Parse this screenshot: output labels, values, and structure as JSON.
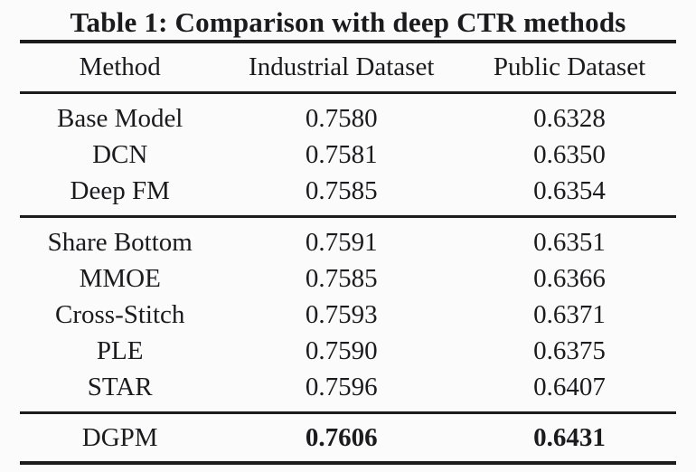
{
  "caption": "Table 1: Comparison with deep CTR methods",
  "columns": {
    "method": "Method",
    "industrial": "Industrial Dataset",
    "public": "Public Dataset"
  },
  "rows": [
    {
      "method": "Base Model",
      "industrial": "0.7580",
      "public": "0.6328"
    },
    {
      "method": "DCN",
      "industrial": "0.7581",
      "public": "0.6350"
    },
    {
      "method": "Deep FM",
      "industrial": "0.7585",
      "public": "0.6354"
    },
    {
      "method": "Share Bottom",
      "industrial": "0.7591",
      "public": "0.6351"
    },
    {
      "method": "MMOE",
      "industrial": "0.7585",
      "public": "0.6366"
    },
    {
      "method": "Cross-Stitch",
      "industrial": "0.7593",
      "public": "0.6371"
    },
    {
      "method": "PLE",
      "industrial": "0.7590",
      "public": "0.6375"
    },
    {
      "method": "STAR",
      "industrial": "0.7596",
      "public": "0.6407"
    },
    {
      "method": "DGPM",
      "industrial": "0.7606",
      "public": "0.6431"
    }
  ],
  "colors": {
    "background": "#fbfbfc",
    "text": "#1b1b1d",
    "rule": "#1c1c1c"
  }
}
